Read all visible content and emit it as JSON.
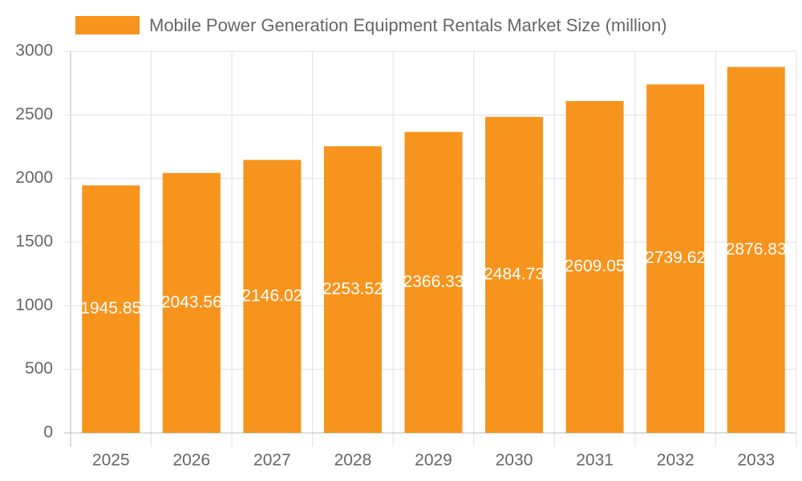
{
  "chart_data": {
    "type": "bar",
    "categories": [
      "2025",
      "2026",
      "2027",
      "2028",
      "2029",
      "2030",
      "2031",
      "2032",
      "2033"
    ],
    "series": [
      {
        "name": "Mobile Power Generation Equipment Rentals Market Size (million)",
        "color": "#f7941d",
        "values": [
          1945.85,
          2043.56,
          2146.02,
          2253.52,
          2366.33,
          2484.73,
          2609.05,
          2739.62,
          2876.83
        ]
      }
    ],
    "ylim": [
      0,
      3000
    ],
    "yticks": [
      0,
      500,
      1000,
      1500,
      2000,
      2500,
      3000
    ],
    "grid": true,
    "legend": "top"
  }
}
